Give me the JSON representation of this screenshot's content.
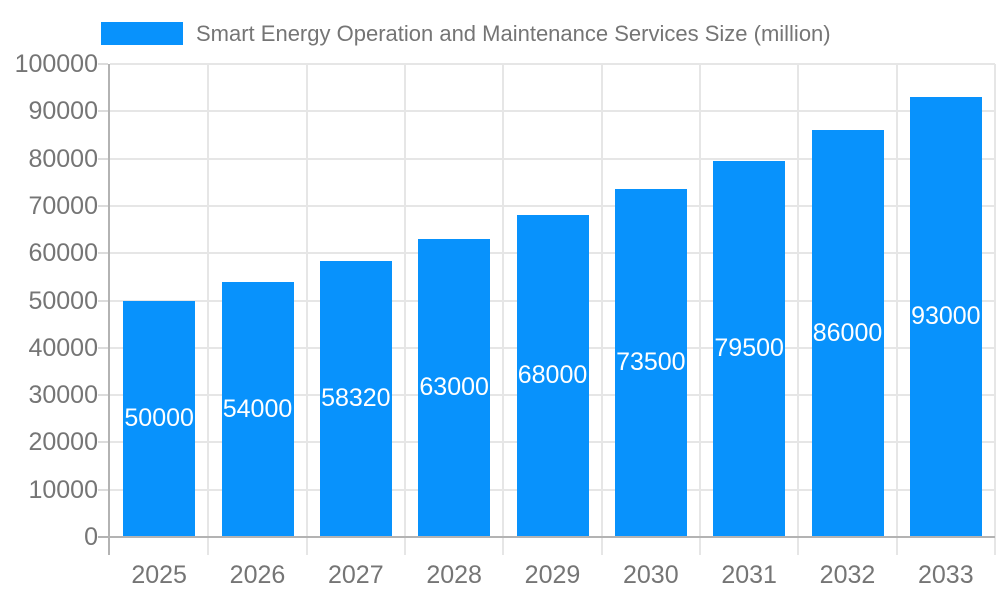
{
  "legend": {
    "label": "Smart Energy Operation and Maintenance Services Size (million)"
  },
  "chart_data": {
    "type": "bar",
    "title": "Smart Energy Operation and Maintenance Services Size (million)",
    "categories": [
      "2025",
      "2026",
      "2027",
      "2028",
      "2029",
      "2030",
      "2031",
      "2032",
      "2033"
    ],
    "values": [
      50000,
      54000,
      58320,
      63000,
      68000,
      73500,
      79500,
      86000,
      93000
    ],
    "value_labels": [
      "50000",
      "54000",
      "58320",
      "63000",
      "68000",
      "73500",
      "79500",
      "86000",
      "93000"
    ],
    "xlabel": "",
    "ylabel": "",
    "ylim": [
      0,
      100000
    ],
    "ytick_interval": 10000,
    "ytick_labels": [
      "0",
      "10000",
      "20000",
      "30000",
      "40000",
      "50000",
      "60000",
      "70000",
      "80000",
      "90000",
      "100000"
    ],
    "grid": true,
    "legend_position": "top",
    "bar_label_position": "inside-center",
    "colors": {
      "bar": "#0892fc",
      "bar_label": "#ffffff",
      "grid": "#e6e6e6",
      "axis": "#b3b3b3",
      "text": "#757575",
      "background": "#ffffff"
    }
  }
}
